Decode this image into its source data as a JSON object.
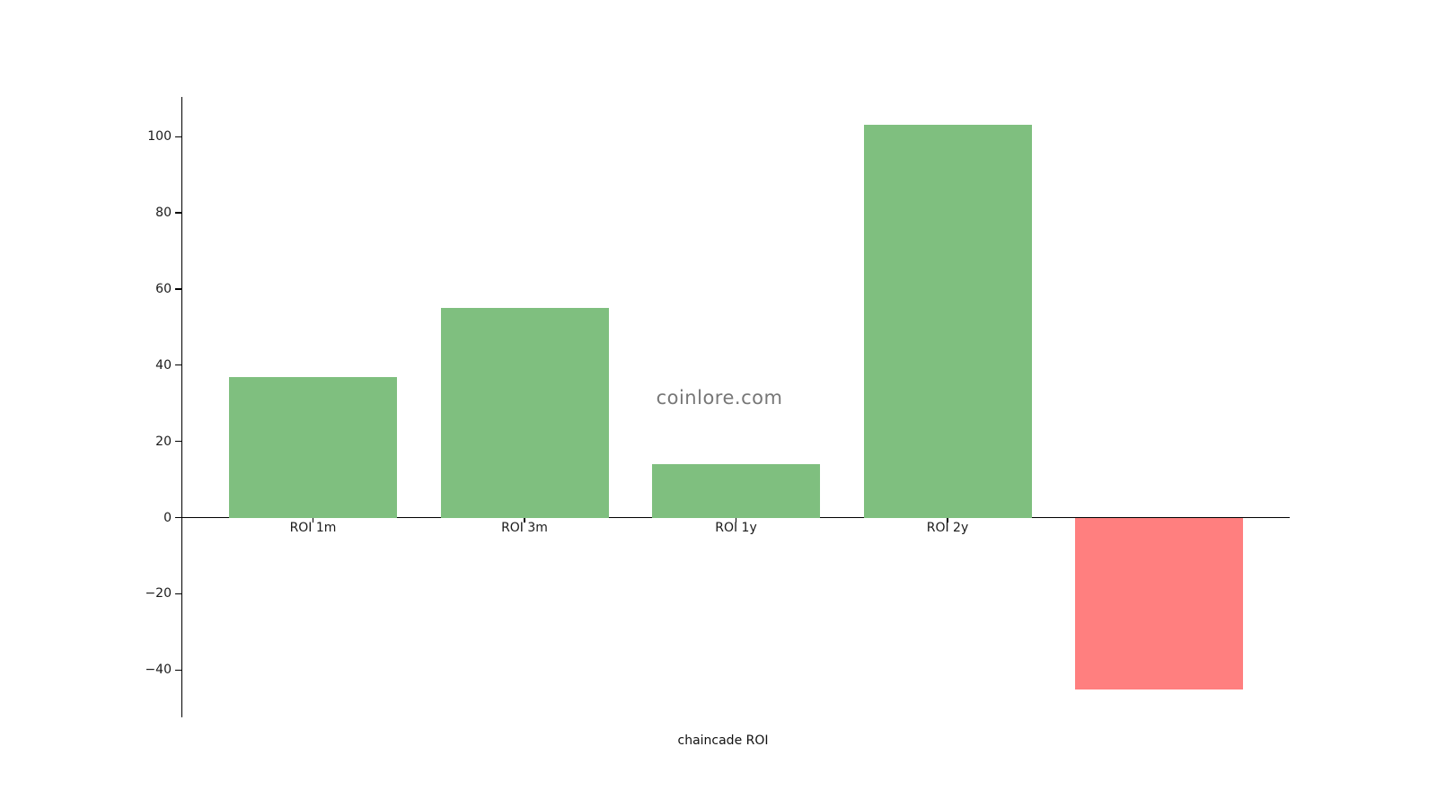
{
  "watermark": "coinlore.com",
  "chart_data": {
    "type": "bar",
    "title": "chaincade ROI",
    "categories": [
      "ROI 1m",
      "ROI 3m",
      "ROI 1y",
      "ROI 2y",
      ""
    ],
    "values": [
      37,
      55,
      14,
      103,
      -45
    ],
    "bar_colors": [
      "#7fbf7f",
      "#7fbf7f",
      "#7fbf7f",
      "#7fbf7f",
      "#ff7f7f"
    ],
    "positive_color": "#7fbf7f",
    "negative_color": "#ff7f7f",
    "ylim": [
      -52.4,
      110.4
    ],
    "yticks": [
      -40,
      -20,
      0,
      20,
      40,
      60,
      80,
      100
    ],
    "ytick_labels": [
      "−40",
      "−20",
      "0",
      "20",
      "40",
      "60",
      "80",
      "100"
    ],
    "xlabel": "chaincade ROI",
    "ylabel": "",
    "grid": false,
    "legend": null,
    "axis_color": "#000000",
    "watermark_color": "#777777"
  }
}
